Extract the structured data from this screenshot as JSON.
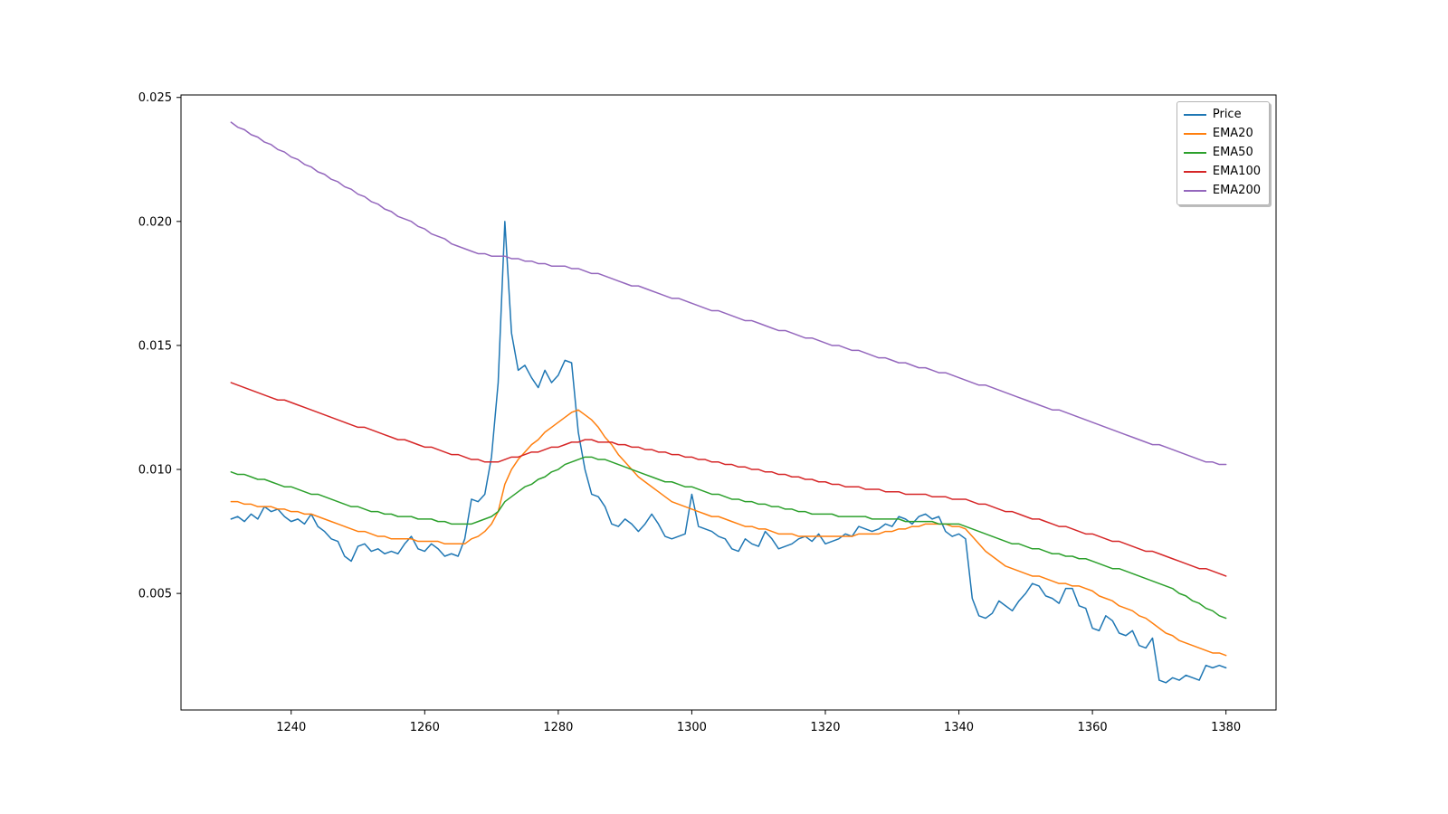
{
  "figure": {
    "background": "#ffffff",
    "title": "",
    "legend_entries": [
      "Price",
      "EMA20",
      "EMA50",
      "EMA100",
      "EMA200"
    ]
  },
  "chart_data": {
    "type": "line",
    "title": "",
    "xlabel": "",
    "ylabel": "",
    "grid": false,
    "legend_position": "upper right",
    "xlim": [
      1223.5,
      1387.5
    ],
    "ylim": [
      0.0003,
      0.0251
    ],
    "x_ticks": [
      1240,
      1260,
      1280,
      1300,
      1320,
      1340,
      1360,
      1380
    ],
    "y_ticks": [
      0.005,
      0.01,
      0.015,
      0.02,
      0.025
    ],
    "y_tick_labels": [
      "0.005",
      "0.010",
      "0.015",
      "0.020",
      "0.025"
    ],
    "x_start": 1231,
    "x_step": 1,
    "series": [
      {
        "name": "Price",
        "color": "#1f77b4",
        "values": [
          0.008,
          0.0081,
          0.0079,
          0.0082,
          0.008,
          0.0085,
          0.0083,
          0.0084,
          0.0081,
          0.0079,
          0.008,
          0.0078,
          0.0082,
          0.0077,
          0.0075,
          0.0072,
          0.0071,
          0.0065,
          0.0063,
          0.0069,
          0.007,
          0.0067,
          0.0068,
          0.0066,
          0.0067,
          0.0066,
          0.007,
          0.0073,
          0.0068,
          0.0067,
          0.007,
          0.0068,
          0.0065,
          0.0066,
          0.0065,
          0.0072,
          0.0088,
          0.0087,
          0.009,
          0.0105,
          0.0135,
          0.02,
          0.0155,
          0.014,
          0.0142,
          0.0137,
          0.0133,
          0.014,
          0.0135,
          0.0138,
          0.0144,
          0.0143,
          0.0115,
          0.01,
          0.009,
          0.0089,
          0.0085,
          0.0078,
          0.0077,
          0.008,
          0.0078,
          0.0075,
          0.0078,
          0.0082,
          0.0078,
          0.0073,
          0.0072,
          0.0073,
          0.0074,
          0.009,
          0.0077,
          0.0076,
          0.0075,
          0.0073,
          0.0072,
          0.0068,
          0.0067,
          0.0072,
          0.007,
          0.0069,
          0.0075,
          0.0072,
          0.0068,
          0.0069,
          0.007,
          0.0072,
          0.0073,
          0.0071,
          0.0074,
          0.007,
          0.0071,
          0.0072,
          0.0074,
          0.0073,
          0.0077,
          0.0076,
          0.0075,
          0.0076,
          0.0078,
          0.0077,
          0.0081,
          0.008,
          0.0078,
          0.0081,
          0.0082,
          0.008,
          0.0081,
          0.0075,
          0.0073,
          0.0074,
          0.0072,
          0.0048,
          0.0041,
          0.004,
          0.0042,
          0.0047,
          0.0045,
          0.0043,
          0.0047,
          0.005,
          0.0054,
          0.0053,
          0.0049,
          0.0048,
          0.0046,
          0.0052,
          0.0052,
          0.0045,
          0.0044,
          0.0036,
          0.0035,
          0.0041,
          0.0039,
          0.0034,
          0.0033,
          0.0035,
          0.0029,
          0.0028,
          0.0032,
          0.0015,
          0.0014,
          0.0016,
          0.0015,
          0.0017,
          0.0016,
          0.0015,
          0.0021,
          0.002,
          0.0021,
          0.002
        ]
      },
      {
        "name": "EMA20",
        "color": "#ff7f0e",
        "values": [
          0.0087,
          0.0087,
          0.0086,
          0.0086,
          0.0085,
          0.0085,
          0.0085,
          0.0084,
          0.0084,
          0.0083,
          0.0083,
          0.0082,
          0.0082,
          0.0081,
          0.008,
          0.0079,
          0.0078,
          0.0077,
          0.0076,
          0.0075,
          0.0075,
          0.0074,
          0.0073,
          0.0073,
          0.0072,
          0.0072,
          0.0072,
          0.0072,
          0.0071,
          0.0071,
          0.0071,
          0.0071,
          0.007,
          0.007,
          0.007,
          0.007,
          0.0072,
          0.0073,
          0.0075,
          0.0078,
          0.0083,
          0.0094,
          0.01,
          0.0104,
          0.0107,
          0.011,
          0.0112,
          0.0115,
          0.0117,
          0.0119,
          0.0121,
          0.0123,
          0.0124,
          0.0122,
          0.012,
          0.0117,
          0.0113,
          0.011,
          0.0106,
          0.0103,
          0.01,
          0.0097,
          0.0095,
          0.0093,
          0.0091,
          0.0089,
          0.0087,
          0.0086,
          0.0085,
          0.0084,
          0.0083,
          0.0082,
          0.0081,
          0.0081,
          0.008,
          0.0079,
          0.0078,
          0.0077,
          0.0077,
          0.0076,
          0.0076,
          0.0075,
          0.0074,
          0.0074,
          0.0074,
          0.0073,
          0.0073,
          0.0073,
          0.0073,
          0.0073,
          0.0073,
          0.0073,
          0.0073,
          0.0073,
          0.0074,
          0.0074,
          0.0074,
          0.0074,
          0.0075,
          0.0075,
          0.0076,
          0.0076,
          0.0077,
          0.0077,
          0.0078,
          0.0078,
          0.0078,
          0.0078,
          0.0077,
          0.0077,
          0.0076,
          0.0073,
          0.007,
          0.0067,
          0.0065,
          0.0063,
          0.0061,
          0.006,
          0.0059,
          0.0058,
          0.0057,
          0.0057,
          0.0056,
          0.0055,
          0.0054,
          0.0054,
          0.0053,
          0.0053,
          0.0052,
          0.0051,
          0.0049,
          0.0048,
          0.0047,
          0.0045,
          0.0044,
          0.0043,
          0.0041,
          0.004,
          0.0038,
          0.0036,
          0.0034,
          0.0033,
          0.0031,
          0.003,
          0.0029,
          0.0028,
          0.0027,
          0.0026,
          0.0026,
          0.0025
        ]
      },
      {
        "name": "EMA50",
        "color": "#2ca02c",
        "values": [
          0.0099,
          0.0098,
          0.0098,
          0.0097,
          0.0096,
          0.0096,
          0.0095,
          0.0094,
          0.0093,
          0.0093,
          0.0092,
          0.0091,
          0.009,
          0.009,
          0.0089,
          0.0088,
          0.0087,
          0.0086,
          0.0085,
          0.0085,
          0.0084,
          0.0083,
          0.0083,
          0.0082,
          0.0082,
          0.0081,
          0.0081,
          0.0081,
          0.008,
          0.008,
          0.008,
          0.0079,
          0.0079,
          0.0078,
          0.0078,
          0.0078,
          0.0078,
          0.0079,
          0.008,
          0.0081,
          0.0083,
          0.0087,
          0.0089,
          0.0091,
          0.0093,
          0.0094,
          0.0096,
          0.0097,
          0.0099,
          0.01,
          0.0102,
          0.0103,
          0.0104,
          0.0105,
          0.0105,
          0.0104,
          0.0104,
          0.0103,
          0.0102,
          0.0101,
          0.01,
          0.0099,
          0.0098,
          0.0097,
          0.0096,
          0.0095,
          0.0095,
          0.0094,
          0.0093,
          0.0093,
          0.0092,
          0.0091,
          0.009,
          0.009,
          0.0089,
          0.0088,
          0.0088,
          0.0087,
          0.0087,
          0.0086,
          0.0086,
          0.0085,
          0.0085,
          0.0084,
          0.0084,
          0.0083,
          0.0083,
          0.0082,
          0.0082,
          0.0082,
          0.0082,
          0.0081,
          0.0081,
          0.0081,
          0.0081,
          0.0081,
          0.008,
          0.008,
          0.008,
          0.008,
          0.008,
          0.0079,
          0.0079,
          0.0079,
          0.0079,
          0.0079,
          0.0078,
          0.0078,
          0.0078,
          0.0078,
          0.0077,
          0.0076,
          0.0075,
          0.0074,
          0.0073,
          0.0072,
          0.0071,
          0.007,
          0.007,
          0.0069,
          0.0068,
          0.0068,
          0.0067,
          0.0066,
          0.0066,
          0.0065,
          0.0065,
          0.0064,
          0.0064,
          0.0063,
          0.0062,
          0.0061,
          0.006,
          0.006,
          0.0059,
          0.0058,
          0.0057,
          0.0056,
          0.0055,
          0.0054,
          0.0053,
          0.0052,
          0.005,
          0.0049,
          0.0047,
          0.0046,
          0.0044,
          0.0043,
          0.0041,
          0.004
        ]
      },
      {
        "name": "EMA100",
        "color": "#d62728",
        "values": [
          0.0135,
          0.0134,
          0.0133,
          0.0132,
          0.0131,
          0.013,
          0.0129,
          0.0128,
          0.0128,
          0.0127,
          0.0126,
          0.0125,
          0.0124,
          0.0123,
          0.0122,
          0.0121,
          0.012,
          0.0119,
          0.0118,
          0.0117,
          0.0117,
          0.0116,
          0.0115,
          0.0114,
          0.0113,
          0.0112,
          0.0112,
          0.0111,
          0.011,
          0.0109,
          0.0109,
          0.0108,
          0.0107,
          0.0106,
          0.0106,
          0.0105,
          0.0104,
          0.0104,
          0.0103,
          0.0103,
          0.0103,
          0.0104,
          0.0105,
          0.0105,
          0.0106,
          0.0107,
          0.0107,
          0.0108,
          0.0109,
          0.0109,
          0.011,
          0.0111,
          0.0111,
          0.0112,
          0.0112,
          0.0111,
          0.0111,
          0.0111,
          0.011,
          0.011,
          0.0109,
          0.0109,
          0.0108,
          0.0108,
          0.0107,
          0.0107,
          0.0106,
          0.0106,
          0.0105,
          0.0105,
          0.0104,
          0.0104,
          0.0103,
          0.0103,
          0.0102,
          0.0102,
          0.0101,
          0.0101,
          0.01,
          0.01,
          0.0099,
          0.0099,
          0.0098,
          0.0098,
          0.0097,
          0.0097,
          0.0096,
          0.0096,
          0.0095,
          0.0095,
          0.0094,
          0.0094,
          0.0093,
          0.0093,
          0.0093,
          0.0092,
          0.0092,
          0.0092,
          0.0091,
          0.0091,
          0.0091,
          0.009,
          0.009,
          0.009,
          0.009,
          0.0089,
          0.0089,
          0.0089,
          0.0088,
          0.0088,
          0.0088,
          0.0087,
          0.0086,
          0.0086,
          0.0085,
          0.0084,
          0.0083,
          0.0083,
          0.0082,
          0.0081,
          0.008,
          0.008,
          0.0079,
          0.0078,
          0.0077,
          0.0077,
          0.0076,
          0.0075,
          0.0074,
          0.0074,
          0.0073,
          0.0072,
          0.0071,
          0.0071,
          0.007,
          0.0069,
          0.0068,
          0.0067,
          0.0067,
          0.0066,
          0.0065,
          0.0064,
          0.0063,
          0.0062,
          0.0061,
          0.006,
          0.006,
          0.0059,
          0.0058,
          0.0057
        ]
      },
      {
        "name": "EMA200",
        "color": "#9467bd",
        "values": [
          0.024,
          0.0238,
          0.0237,
          0.0235,
          0.0234,
          0.0232,
          0.0231,
          0.0229,
          0.0228,
          0.0226,
          0.0225,
          0.0223,
          0.0222,
          0.022,
          0.0219,
          0.0217,
          0.0216,
          0.0214,
          0.0213,
          0.0211,
          0.021,
          0.0208,
          0.0207,
          0.0205,
          0.0204,
          0.0202,
          0.0201,
          0.02,
          0.0198,
          0.0197,
          0.0195,
          0.0194,
          0.0193,
          0.0191,
          0.019,
          0.0189,
          0.0188,
          0.0187,
          0.0187,
          0.0186,
          0.0186,
          0.0186,
          0.0185,
          0.0185,
          0.0184,
          0.0184,
          0.0183,
          0.0183,
          0.0182,
          0.0182,
          0.0182,
          0.0181,
          0.0181,
          0.018,
          0.0179,
          0.0179,
          0.0178,
          0.0177,
          0.0176,
          0.0175,
          0.0174,
          0.0174,
          0.0173,
          0.0172,
          0.0171,
          0.017,
          0.0169,
          0.0169,
          0.0168,
          0.0167,
          0.0166,
          0.0165,
          0.0164,
          0.0164,
          0.0163,
          0.0162,
          0.0161,
          0.016,
          0.016,
          0.0159,
          0.0158,
          0.0157,
          0.0156,
          0.0156,
          0.0155,
          0.0154,
          0.0153,
          0.0153,
          0.0152,
          0.0151,
          0.015,
          0.015,
          0.0149,
          0.0148,
          0.0148,
          0.0147,
          0.0146,
          0.0145,
          0.0145,
          0.0144,
          0.0143,
          0.0143,
          0.0142,
          0.0141,
          0.0141,
          0.014,
          0.0139,
          0.0139,
          0.0138,
          0.0137,
          0.0136,
          0.0135,
          0.0134,
          0.0134,
          0.0133,
          0.0132,
          0.0131,
          0.013,
          0.0129,
          0.0128,
          0.0127,
          0.0126,
          0.0125,
          0.0124,
          0.0124,
          0.0123,
          0.0122,
          0.0121,
          0.012,
          0.0119,
          0.0118,
          0.0117,
          0.0116,
          0.0115,
          0.0114,
          0.0113,
          0.0112,
          0.0111,
          0.011,
          0.011,
          0.0109,
          0.0108,
          0.0107,
          0.0106,
          0.0105,
          0.0104,
          0.0103,
          0.0103,
          0.0102,
          0.0102
        ]
      }
    ]
  }
}
